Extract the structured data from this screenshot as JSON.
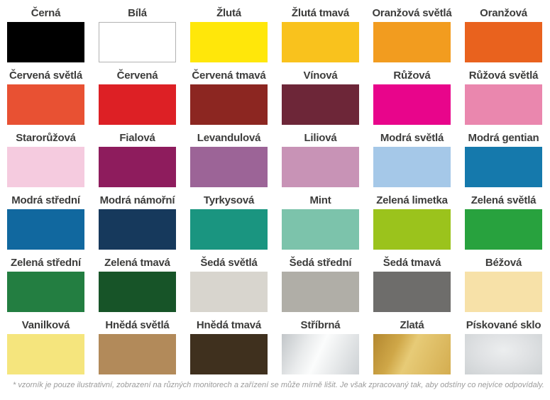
{
  "page": {
    "background": "#ffffff",
    "label_color": "#3c3c3b",
    "footnote_color": "#9b9b9b"
  },
  "palette": {
    "swatches": [
      {
        "label": "Černá",
        "color": "#000000"
      },
      {
        "label": "Bílá",
        "color": "#ffffff",
        "border": "#b2b2b2"
      },
      {
        "label": "Žlutá",
        "color": "#ffe70a"
      },
      {
        "label": "Žlutá tmavá",
        "color": "#f9c21d"
      },
      {
        "label": "Oranžová světlá",
        "color": "#f29c1f"
      },
      {
        "label": "Oranžová",
        "color": "#e9621e"
      },
      {
        "label": "Červená světlá",
        "color": "#e85133"
      },
      {
        "label": "Červená",
        "color": "#dd2025"
      },
      {
        "label": "Červená tmavá",
        "color": "#8c2621"
      },
      {
        "label": "Vínová",
        "color": "#6d2638"
      },
      {
        "label": "Růžová",
        "color": "#e8058b"
      },
      {
        "label": "Růžová světlá",
        "color": "#ea87ae"
      },
      {
        "label": "Starorůžová",
        "color": "#f5cbdf"
      },
      {
        "label": "Fialová",
        "color": "#8e1c5d"
      },
      {
        "label": "Levandulová",
        "color": "#9c6497"
      },
      {
        "label": "Liliová",
        "color": "#c893b6"
      },
      {
        "label": "Modrá světlá",
        "color": "#a5c8e8"
      },
      {
        "label": "Modrá gentian",
        "color": "#1579ac"
      },
      {
        "label": "Modrá střední",
        "color": "#11689f"
      },
      {
        "label": "Modrá námořní",
        "color": "#16395c"
      },
      {
        "label": "Tyrkysová",
        "color": "#1a9580"
      },
      {
        "label": "Mint",
        "color": "#7cc3ab"
      },
      {
        "label": "Zelená limetka",
        "color": "#9bc31c"
      },
      {
        "label": "Zelená světlá",
        "color": "#28a23e"
      },
      {
        "label": "Zelená střední",
        "color": "#237e41"
      },
      {
        "label": "Zelená tmavá",
        "color": "#175428"
      },
      {
        "label": "Šedá světlá",
        "color": "#d8d5ce"
      },
      {
        "label": "Šedá střední",
        "color": "#b0aea7"
      },
      {
        "label": "Šedá tmavá",
        "color": "#6e6d6b"
      },
      {
        "label": "Béžová",
        "color": "#f7e1a8"
      },
      {
        "label": "Vanilková",
        "color": "#f5e57d"
      },
      {
        "label": "Hnědá světlá",
        "color": "#b28a5a"
      },
      {
        "label": "Hnědá tmavá",
        "color": "#3f301e"
      },
      {
        "label": "Stříbrná",
        "finish": "silver",
        "gradient": [
          "#c2c6c9",
          "#e9ebec",
          "#fbfcfc",
          "#cdd1d4"
        ]
      },
      {
        "label": "Zlatá",
        "finish": "gold",
        "gradient": [
          "#b3872f",
          "#cfa748",
          "#e7cb77",
          "#d4ad50"
        ]
      },
      {
        "label": "Pískované sklo",
        "finish": "glass",
        "gradient": [
          "#eceeef",
          "#e0e2e4",
          "#ced2d4"
        ]
      }
    ]
  },
  "footnote": {
    "text": "* vzorník je pouze ilustrativní, zobrazení na různých monitorech a zařízení se může mírně lišit. Je však zpracovaný tak, aby odstíny co nejvíce odpovídaly."
  }
}
